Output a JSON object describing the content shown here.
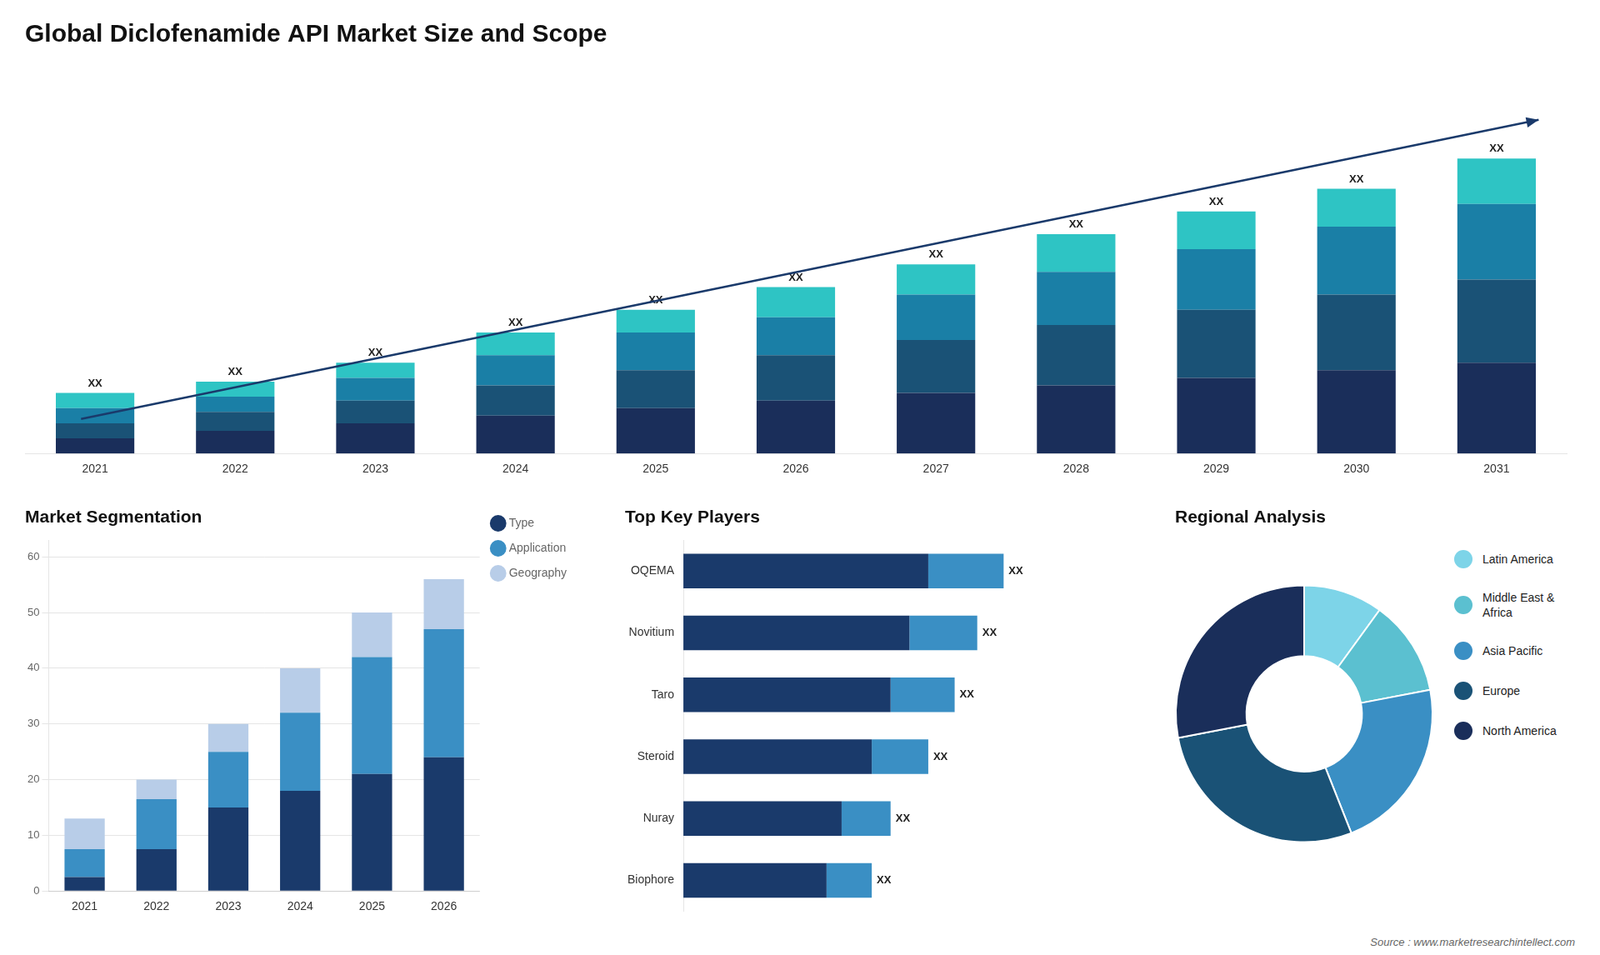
{
  "chart_data": [
    {
      "type": "bar",
      "title": "Global Diclofenamide API Market Size and Scope",
      "stacked": true,
      "categories": [
        2021,
        2022,
        2023,
        2024,
        2025,
        2026,
        2027,
        2028,
        2029,
        2030,
        2031
      ],
      "series": [
        {
          "color": "#1a2e5a",
          "values": [
            2,
            3,
            4,
            5,
            6,
            7,
            8,
            9,
            10,
            11,
            12
          ]
        },
        {
          "color": "#1a5276",
          "values": [
            2,
            2.5,
            3,
            4,
            5,
            6,
            7,
            8,
            9,
            10,
            11
          ]
        },
        {
          "color": "#1a7fa6",
          "values": [
            2,
            2,
            3,
            4,
            5,
            5,
            6,
            7,
            8,
            9,
            10
          ]
        },
        {
          "color": "#2ec4c4",
          "values": [
            2,
            2,
            2,
            3,
            3,
            4,
            4,
            5,
            5,
            5,
            6
          ]
        }
      ],
      "stack_labels": [
        "XX",
        "XX",
        "XX",
        "XX",
        "XX",
        "XX",
        "XX",
        "XX",
        "XX",
        "XX",
        "XX"
      ],
      "ylim": [
        0,
        50.7
      ],
      "tick_labels": "x",
      "grid": false
    },
    {
      "type": "bar",
      "title": "Market Segmentation",
      "stacked": true,
      "categories": [
        2021,
        2022,
        2023,
        2024,
        2025,
        2026
      ],
      "series": [
        {
          "name": "Type",
          "color": "#1a3a6b",
          "values": [
            2.5,
            7.5,
            15,
            18,
            21,
            24
          ]
        },
        {
          "name": "Application",
          "color": "#3a8fc4",
          "values": [
            5,
            9,
            10,
            14,
            21,
            23
          ]
        },
        {
          "name": "Geography",
          "color": "#b8cde8",
          "values": [
            5.5,
            3.5,
            5,
            8,
            8,
            9
          ]
        }
      ],
      "ylim": [
        0,
        63
      ],
      "yticks": [
        0,
        10,
        20,
        30,
        40,
        50,
        60
      ],
      "grid": true,
      "legend": "upper right"
    },
    {
      "type": "bar",
      "title": "Top Key Players",
      "orientation": "horizontal",
      "stacked": true,
      "categories": [
        "OQEMA",
        "Novitium",
        "Taro",
        "Steroid",
        "Nuray",
        "Biophore"
      ],
      "series": [
        {
          "color": "#1a3a6b",
          "values": [
            0.65,
            0.6,
            0.55,
            0.5,
            0.42,
            0.38
          ]
        },
        {
          "color": "#3a8fc4",
          "values": [
            0.2,
            0.18,
            0.17,
            0.15,
            0.13,
            0.12
          ]
        }
      ],
      "stack_labels": [
        "XX",
        "XX",
        "XX",
        "XX",
        "XX",
        "XX"
      ],
      "xlim": [
        0,
        1.15
      ],
      "tick_labels": "y",
      "grid": false
    },
    {
      "type": "doughnut",
      "title": "Regional Analysis",
      "categories": [
        "Latin America",
        "Middle East &\nAfrica",
        "Asia Pacific",
        "Europe",
        "North America"
      ],
      "values": [
        10,
        12,
        22,
        28,
        28
      ],
      "colors": [
        "#7dd4e8",
        "#5bc0d0",
        "#3a8fc4",
        "#1a5276",
        "#1a2e5a"
      ],
      "legend": "right",
      "annotations": [
        "Source : www.marketresearchintellect.com"
      ]
    }
  ]
}
